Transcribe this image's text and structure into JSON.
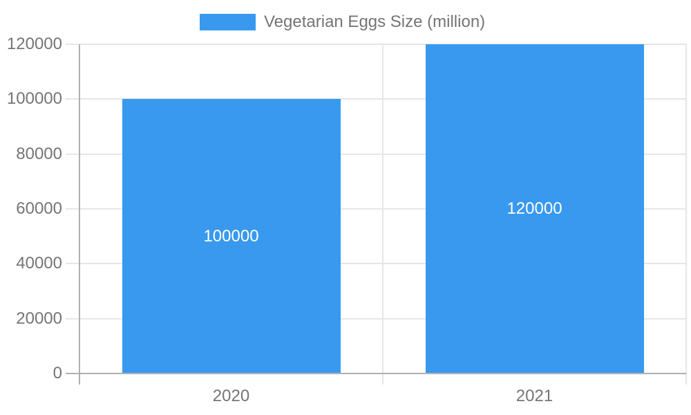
{
  "chart_data": {
    "type": "bar",
    "title": "",
    "categories": [
      "2020",
      "2021"
    ],
    "series": [
      {
        "name": "Vegetarian Eggs Size (million)",
        "values": [
          100000,
          120000
        ]
      }
    ],
    "bar_labels": [
      "100000",
      "120000"
    ],
    "yticks": [
      0,
      20000,
      40000,
      60000,
      80000,
      100000,
      120000
    ],
    "ytick_labels": [
      "0",
      "20000",
      "40000",
      "60000",
      "80000",
      "100000",
      "120000"
    ],
    "ylim": [
      0,
      120000
    ],
    "xlabel": "",
    "ylabel": "",
    "grid": true,
    "legend_position": "top"
  },
  "legend": {
    "label": "Vegetarian Eggs Size (million)"
  },
  "colors": {
    "bar": "#3899EE",
    "grid_light": "#e6e6e6",
    "axis_line": "#b0b0b0",
    "tick_text": "#757575",
    "bar_label_text": "#ffffff",
    "background": "#ffffff"
  }
}
